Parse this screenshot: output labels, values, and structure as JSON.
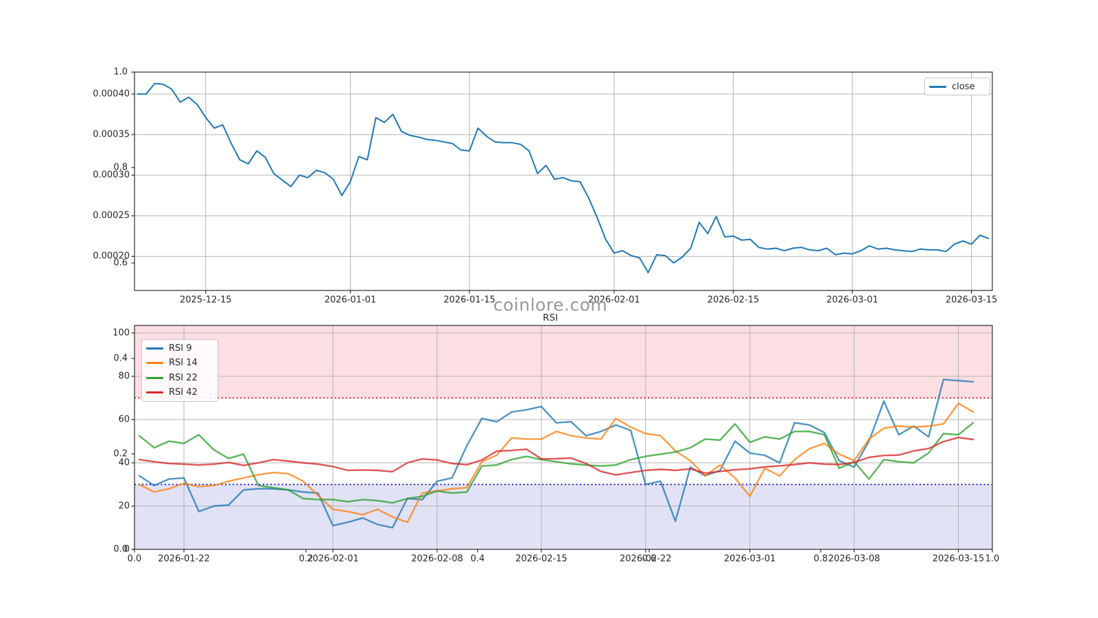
{
  "watermark": "coinlore.com",
  "colors": {
    "close": "#1f77b4",
    "rsi9": "#1f77b4",
    "rsi14": "#ff7f0e",
    "rsi22": "#2ca02c",
    "rsi42": "#d62728",
    "overbought_band": "#fcdfe3",
    "oversold_band": "#e2e2f6",
    "overbought_line": "#e8000b",
    "oversold_line": "#0000cd",
    "grid": "#b3b3b3",
    "spine": "#2b2b2b",
    "watermark_gray": "#989898"
  },
  "background_axes": {
    "x_tick_labels": [
      "0.0",
      "0.2",
      "0.4",
      "0.6",
      "0.8",
      "1.0"
    ],
    "y_tick_labels": [
      "0.0",
      "0.2",
      "0.4",
      "0.6",
      "0.8",
      "1.0"
    ]
  },
  "chart_data": [
    {
      "type": "line",
      "panel": "price",
      "title": "",
      "xlabel": "",
      "ylabel": "",
      "grid": true,
      "legend_position": "upper right",
      "x_start_date": "2025-12-07",
      "x_frequency": "daily",
      "x_tick_labels": [
        "2025-12-15",
        "2026-01-01",
        "2026-01-15",
        "2026-02-01",
        "2026-02-15",
        "2026-03-01",
        "2026-03-15"
      ],
      "x_tick_indices": [
        8,
        25,
        39,
        56,
        70,
        84,
        98
      ],
      "y_tick_labels": [
        "0.00020",
        "0.00025",
        "0.00030",
        "0.00035",
        "0.00040"
      ],
      "y_ticks": [
        0.0002,
        0.00025,
        0.0003,
        0.00035,
        0.0004
      ],
      "ylim": [
        0.000158,
        0.000427
      ],
      "series": [
        {
          "name": "close",
          "color": "#1f77b4",
          "values": [
            0.0004,
            0.0004,
            0.000413,
            0.000412,
            0.000406,
            0.00039,
            0.000396,
            0.000387,
            0.000371,
            0.000358,
            0.000362,
            0.000339,
            0.000319,
            0.000314,
            0.00033,
            0.000322,
            0.000302,
            0.000294,
            0.000286,
            0.0003,
            0.000297,
            0.000306,
            0.000303,
            0.000295,
            0.000275,
            0.000292,
            0.000323,
            0.000319,
            0.000371,
            0.000365,
            0.000375,
            0.000354,
            0.000349,
            0.000347,
            0.000344,
            0.000343,
            0.000341,
            0.000339,
            0.000331,
            0.00033,
            0.000358,
            0.000348,
            0.000341,
            0.00034,
            0.00034,
            0.000338,
            0.00033,
            0.000302,
            0.000312,
            0.000295,
            0.000297,
            0.000293,
            0.000292,
            0.000272,
            0.000248,
            0.000221,
            0.000204,
            0.000207,
            0.000201,
            0.000198,
            0.00018,
            0.000202,
            0.000201,
            0.000192,
            0.000199,
            0.00021,
            0.000242,
            0.000228,
            0.000249,
            0.000224,
            0.000225,
            0.00022,
            0.000221,
            0.000211,
            0.000209,
            0.00021,
            0.000207,
            0.00021,
            0.000211,
            0.000208,
            0.000207,
            0.00021,
            0.000202,
            0.000204,
            0.000203,
            0.000207,
            0.000213,
            0.000209,
            0.00021,
            0.000208,
            0.000207,
            0.000206,
            0.000209,
            0.000208,
            0.000208,
            0.000206,
            0.000215,
            0.000219,
            0.000215,
            0.000226,
            0.000222
          ]
        }
      ]
    },
    {
      "type": "line",
      "panel": "rsi",
      "title": "RSI",
      "xlabel": "",
      "ylabel": "",
      "grid": true,
      "legend_position": "upper left",
      "overbought_level": 70,
      "oversold_level": 30,
      "x_start_date": "2026-01-19",
      "x_frequency": "daily",
      "x_tick_labels": [
        "2026-01-22",
        "2026-02-01",
        "2026-02-08",
        "2026-02-15",
        "2026-02-22",
        "2026-03-01",
        "2026-03-08",
        "2026-03-15"
      ],
      "x_tick_indices": [
        3,
        13,
        20,
        27,
        34,
        41,
        48,
        55
      ],
      "y_tick_labels": [
        "0",
        "20",
        "40",
        "60",
        "80",
        "100"
      ],
      "y_ticks": [
        0,
        20,
        40,
        60,
        80,
        100
      ],
      "ylim": [
        0,
        103.5
      ],
      "series": [
        {
          "name": "RSI 9",
          "color": "#1f77b4",
          "values": [
            34,
            29.5,
            32.5,
            33,
            17.5,
            20,
            20.5,
            27.5,
            28,
            28,
            27.5,
            26.5,
            26,
            11,
            12.5,
            14.5,
            11.5,
            10,
            23.5,
            23,
            31.5,
            33,
            48,
            60.5,
            59,
            63.5,
            64.5,
            66,
            58.5,
            59,
            52.5,
            54.5,
            57.5,
            55,
            30,
            31.5,
            13,
            38,
            34,
            36.5,
            50,
            44.5,
            43.5,
            40,
            58.5,
            57.5,
            54,
            41,
            38,
            50,
            68.5,
            53,
            57,
            52,
            78.5,
            78,
            77.5
          ]
        },
        {
          "name": "RSI 14",
          "color": "#ff7f0e",
          "values": [
            30,
            26.5,
            28,
            30.5,
            29,
            29.5,
            31.5,
            33,
            34.5,
            35.5,
            35,
            31.5,
            25,
            18.5,
            17.5,
            16,
            18.5,
            15,
            12.5,
            26,
            27,
            28,
            28.5,
            40.5,
            43.5,
            51.5,
            51,
            51,
            54.5,
            52.5,
            51.5,
            51,
            60.5,
            56.5,
            53.5,
            52.5,
            45.5,
            41,
            34,
            39,
            33,
            24.5,
            37.5,
            34,
            41.5,
            46.5,
            49,
            44,
            41,
            51,
            56,
            57,
            56.5,
            57,
            58,
            67.5,
            63.5
          ]
        },
        {
          "name": "RSI 22",
          "color": "#2ca02c",
          "values": [
            52.5,
            47,
            50,
            49,
            53,
            46,
            42,
            44,
            29.5,
            28.5,
            27.5,
            23.5,
            23,
            23,
            22,
            23,
            22.5,
            21.5,
            23.5,
            24.5,
            27,
            26,
            26.5,
            38.5,
            39,
            41.5,
            43,
            41.5,
            40.5,
            39.5,
            39,
            38.5,
            39,
            41.5,
            43,
            44,
            45,
            47,
            51,
            50.5,
            58,
            49.5,
            52,
            51,
            54.5,
            54.5,
            53,
            37.5,
            40.5,
            32.5,
            41.5,
            40.5,
            40,
            44.5,
            53.5,
            53,
            58.5
          ]
        },
        {
          "name": "RSI 42",
          "color": "#d62728",
          "values": [
            41.5,
            40.5,
            39.7,
            39.4,
            39,
            39.4,
            40.2,
            38.8,
            40,
            41.5,
            40.8,
            40,
            39.4,
            38.3,
            36.5,
            36.7,
            36.5,
            35.9,
            40,
            41.8,
            41.3,
            39.7,
            39.1,
            41.3,
            45.4,
            45.7,
            46.3,
            41.8,
            41.9,
            42.2,
            39.7,
            36,
            34.4,
            35.5,
            36.5,
            37,
            36.5,
            37.2,
            35.2,
            36,
            36.8,
            37.2,
            38.1,
            38.6,
            39.2,
            40,
            39.4,
            39.2,
            40.2,
            42.5,
            43.4,
            43.6,
            45.5,
            46.6,
            49.8,
            51.7,
            50.8
          ]
        }
      ]
    }
  ]
}
